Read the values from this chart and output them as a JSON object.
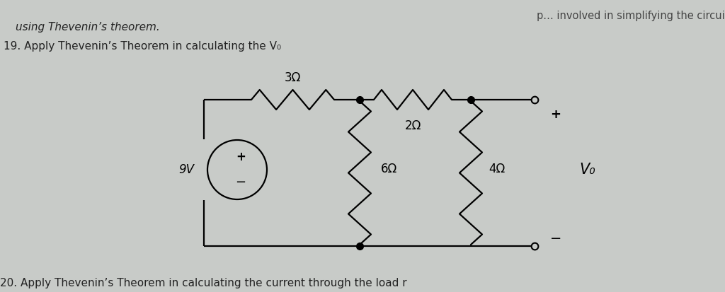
{
  "bg_color": "#c8cbc8",
  "title_line1": "using Thevenin’s theorem.",
  "title_line2": "19. Apply Thevenin’s Theorem in calculating the V₀",
  "bottom_text": "20. Apply Thevenin’s Theorem in calculating the current through the load r",
  "source_voltage": "9V",
  "r1_label": "3Ω",
  "r2_label": "2Ω",
  "r3_label": "6Ω",
  "r4_label": "4Ω",
  "vo_label": "V₀",
  "plus_label": "+",
  "minus_label": "−",
  "source_plus": "+",
  "source_minus": "−",
  "partial_text_top": "p… involved in simplifying the circui"
}
